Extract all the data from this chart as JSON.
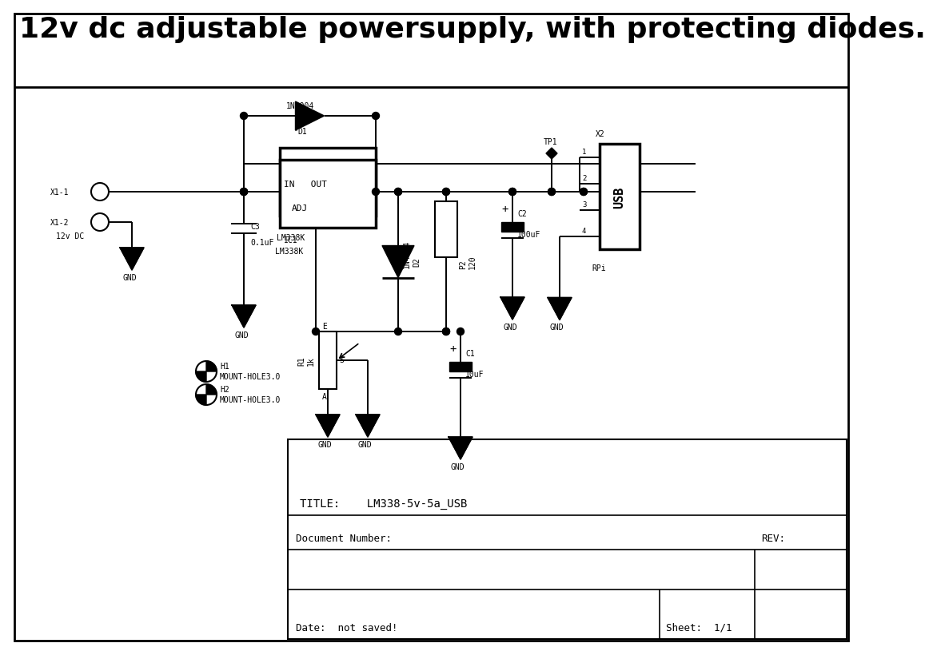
{
  "title": "12v dc adjustable powersupply, with protecting diodes.",
  "title_fontsize": 26,
  "bg_color": "#ffffff",
  "line_color": "#000000",
  "title_block": {
    "title_text": "TITLE:    LM338-5v-5a_USB",
    "doc_number": "Document Number:",
    "rev": "REV:",
    "date": "Date:  not saved!",
    "sheet": "Sheet:  1/1"
  }
}
